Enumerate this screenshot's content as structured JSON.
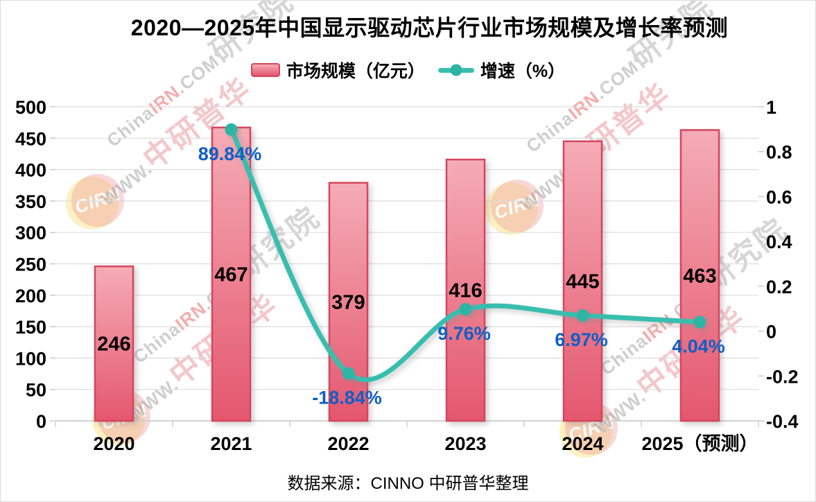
{
  "title": "2020—2025年中国显示驱动芯片行业市场规模及增长率预测",
  "legend": {
    "bar_label": "市场规模（亿元）",
    "line_label": "增速（%）"
  },
  "source": "数据来源：CINNO 中研普华整理",
  "watermark": {
    "logo": "CIRN",
    "line1_prefix": "China",
    "line1_red": "IRN",
    "line1_suffix": ".COM",
    "line1_big": "研究院",
    "line2_small": "WWW.",
    "line2_big": "中研普华"
  },
  "colors": {
    "bar_top": "#F5ACB6",
    "bar_bottom": "#E4576E",
    "bar_border": "#D6455C",
    "line": "#39BEAE",
    "marker": "#2EB4A4",
    "pct_label": "#0E5FC5",
    "value_label": "#000000",
    "grid": "#DBDBDB",
    "axis": "#D1D1D1",
    "tick": "#C8C8C8",
    "text": "#000000"
  },
  "chart_data": {
    "type": "bar+line combo",
    "title": "2020—2025年中国显示驱动芯片行业市场规模及增长率预测",
    "categories": [
      "2020",
      "2021",
      "2022",
      "2023",
      "2024",
      "2025（预测）"
    ],
    "series": [
      {
        "name": "市场规模（亿元）",
        "type": "bar",
        "axis": "left",
        "values": [
          246,
          467,
          379,
          416,
          445,
          463
        ],
        "labels": [
          "246",
          "467",
          "379",
          "416",
          "445",
          "463"
        ]
      },
      {
        "name": "增速（%）",
        "type": "line",
        "axis": "right",
        "values": [
          null,
          0.8984,
          -0.1884,
          0.0976,
          0.0697,
          0.0404
        ],
        "labels": [
          null,
          "89.84%",
          "-18.84%",
          "9.76%",
          "6.97%",
          "4.04%"
        ]
      }
    ],
    "left_axis": {
      "min": 0,
      "max": 500,
      "step": 50
    },
    "right_axis": {
      "min": -0.4,
      "max": 1,
      "step": 0.2
    },
    "grid": "horizontal gridlines on",
    "legend_position": "top"
  }
}
